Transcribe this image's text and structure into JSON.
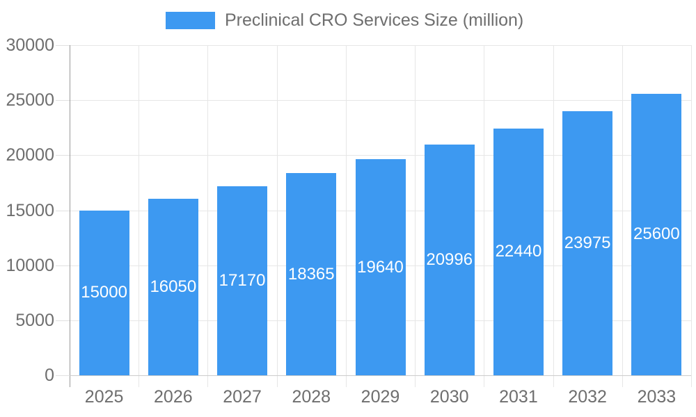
{
  "chart_data": {
    "type": "bar",
    "title": "Preclinical CRO Services Size (million)",
    "legend": [
      "Preclinical CRO Services Size (million)"
    ],
    "legend_position": "top",
    "categories": [
      "2025",
      "2026",
      "2027",
      "2028",
      "2029",
      "2030",
      "2031",
      "2032",
      "2033"
    ],
    "series": [
      {
        "name": "Preclinical CRO Services Size (million)",
        "values": [
          15000,
          16050,
          17170,
          18365,
          19640,
          20996,
          22440,
          23975,
          25600
        ]
      }
    ],
    "xlabel": "",
    "ylabel": "",
    "ylim": [
      0,
      30000
    ],
    "ytick_step": 5000,
    "yticks": [
      0,
      5000,
      10000,
      15000,
      20000,
      25000,
      30000
    ],
    "grid": true,
    "bar_color": "#3D99F1",
    "value_label_color": "#ffffff",
    "axis_text_color": "#6e6e6e"
  }
}
